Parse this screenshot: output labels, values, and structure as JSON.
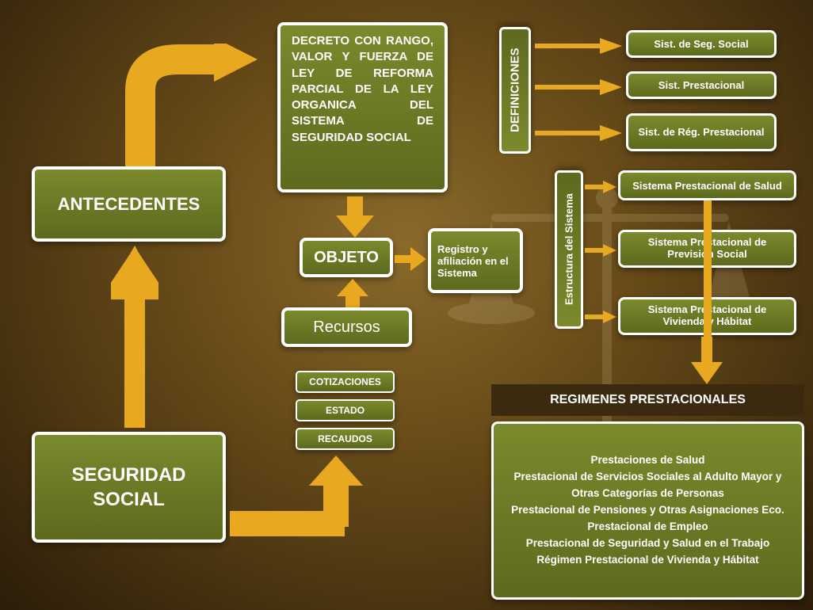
{
  "colors": {
    "olive": "#6b7a24",
    "olive_light": "#8a9a3a",
    "orange": "#e8a820",
    "dark": "#3b2a0f",
    "white": "#ffffff"
  },
  "left": {
    "antecedentes": "ANTECEDENTES",
    "seguridad": "SEGURIDAD SOCIAL"
  },
  "decreto": "DECRETO CON RANGO, VALOR Y FUERZA DE LEY DE REFORMA PARCIAL DE LA LEY ORGANICA DEL SISTEMA DE SEGURIDAD SOCIAL",
  "objeto": "OBJETO",
  "recursos": "Recursos",
  "registro": "Registro y afiliación en el Sistema",
  "recursos_items": [
    "COTIZACIONES",
    "ESTADO",
    "RECAUDOS"
  ],
  "definiciones_label": "DEFINICIONES",
  "definiciones": [
    "Sist. de Seg. Social",
    "Sist. Prestacional",
    "Sist. de Rég. Prestacional"
  ],
  "estructura_label": "Estructura del Sistema",
  "estructura": [
    "Sistema Prestacional de Salud",
    "Sistema Prestacional de Previsión Social",
    "Sistema Prestacional de Vivienda y Hábitat"
  ],
  "regimenes_title": "REGIMENES PRESTACIONALES",
  "regimenes": [
    "Prestaciones de Salud",
    "Prestacional de Servicios Sociales al Adulto Mayor y Otras Categorías de Personas",
    "Prestacional de Pensiones y Otras Asignaciones Eco.",
    "Prestacional de Empleo",
    "Prestacional de Seguridad y Salud en el Trabajo",
    "Régimen Prestacional de Vivienda y Hábitat"
  ]
}
